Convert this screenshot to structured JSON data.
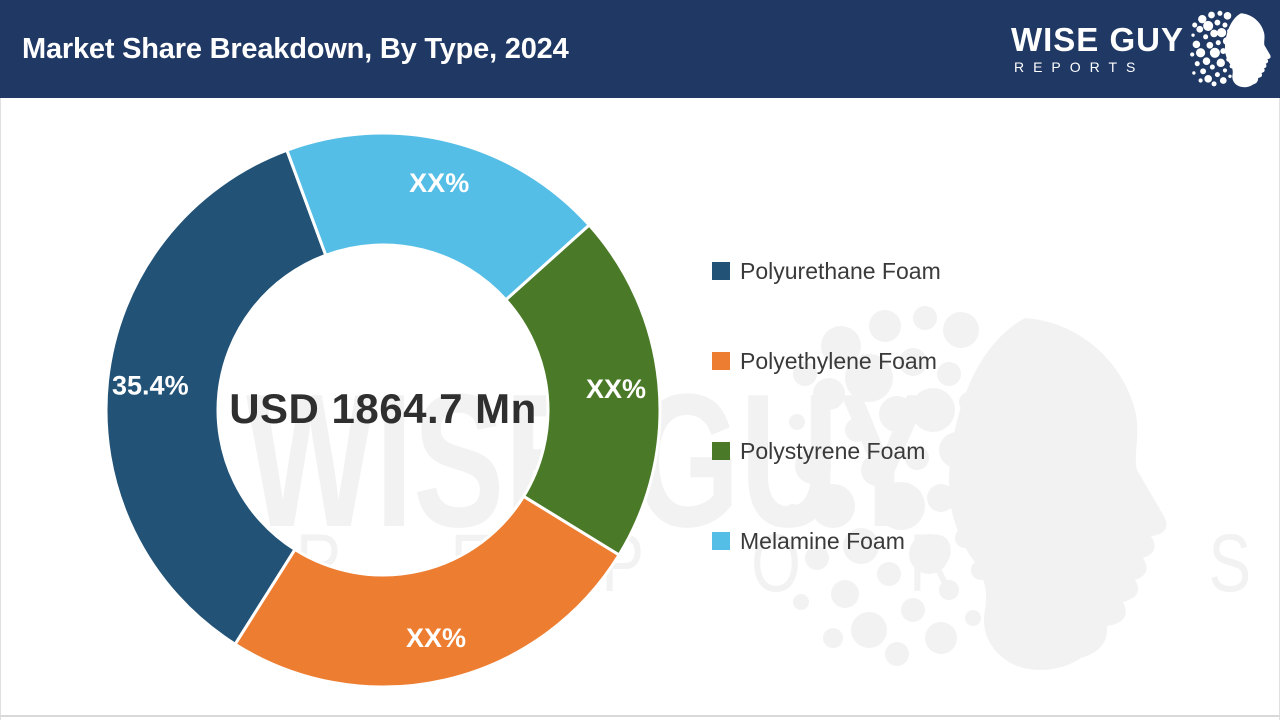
{
  "header": {
    "title": "Market Share Breakdown, By Type, 2024",
    "bg_color": "#1F3864",
    "logo": {
      "wordmark": "WISE GUY",
      "subtext": "REPORTS"
    }
  },
  "watermark": {
    "wordmark": "WISE GUY",
    "subtext": "REPORTS",
    "color": "#F2F2F2"
  },
  "chart_data": {
    "type": "pie",
    "subtype": "donut",
    "title": "Market Share Breakdown, By Type, 2024",
    "center_label": "USD 1864.7 Mn",
    "start_angle_deg": 110.3,
    "direction": "counterclockwise",
    "donut_hole_ratio": 0.6,
    "legend_position": "right",
    "separator_color": "#FFFFFF",
    "percent_label_color": "#FFFFFF",
    "segments": [
      {
        "label": "Polyurethane Foam",
        "value_pct": 35.4,
        "display_label": "35.4%",
        "color": "#225377"
      },
      {
        "label": "Polyethylene Foam",
        "value_pct": 25.2,
        "display_label": "XX%",
        "color": "#ED7D31"
      },
      {
        "label": "Polystyrene Foam",
        "value_pct": 20.4,
        "display_label": "XX%",
        "color": "#4A7A28"
      },
      {
        "label": "Melamine Foam",
        "value_pct": 19.0,
        "display_label": "XX%",
        "color": "#55BEE6"
      }
    ]
  }
}
